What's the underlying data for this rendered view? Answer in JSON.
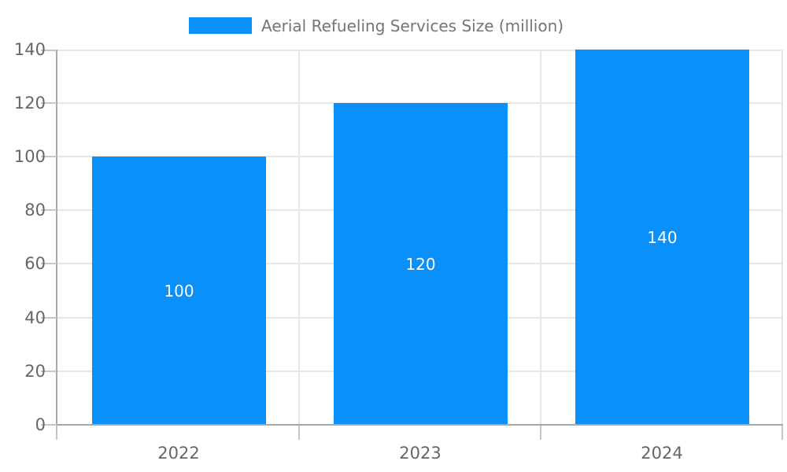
{
  "legend": {
    "label": "Aerial Refueling Services Size (million)"
  },
  "colors": {
    "bar": "#0a90fa",
    "grid": "#e6e6e6",
    "axis": "#a8a8a8",
    "tick": "#c6c6c6",
    "tick_label": "#666666",
    "legend_text": "#757575",
    "data_label": "#ffffff",
    "background": "#ffffff"
  },
  "y_axis": {
    "tick_labels": [
      "0",
      "20",
      "40",
      "60",
      "80",
      "100",
      "120",
      "140"
    ]
  },
  "x_axis": {
    "tick_labels": [
      "2022",
      "2023",
      "2024"
    ]
  },
  "chart_data": {
    "type": "bar",
    "title": "Aerial Refueling Services Size (million)",
    "categories": [
      "2022",
      "2023",
      "2024"
    ],
    "series": [
      {
        "name": "Aerial Refueling Services Size (million)",
        "values": [
          100,
          120,
          140
        ]
      }
    ],
    "values": [
      100,
      120,
      140
    ],
    "xlabel": "",
    "ylabel": "",
    "ylim": [
      0,
      140
    ],
    "y_tick_interval": 20,
    "grid": true,
    "gridlines": "horizontal-and-category-boundaries",
    "legend_position": "top-center",
    "data_labels": "centered-inside-bars",
    "bar_color": "#0a90fa"
  }
}
